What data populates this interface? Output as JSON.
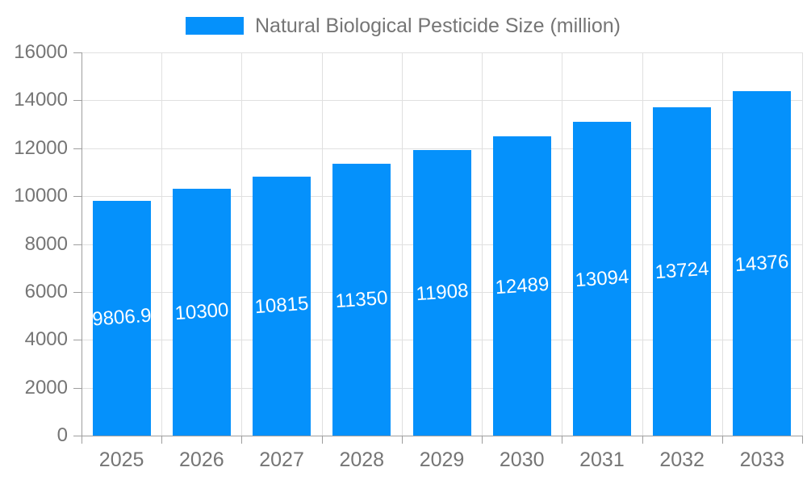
{
  "legend": {
    "label": "Natural Biological Pesticide Size (million)"
  },
  "chart_data": {
    "type": "bar",
    "title": "",
    "legend_entries": [
      "Natural Biological Pesticide Size (million)"
    ],
    "legend_position": "top",
    "categories": [
      "2025",
      "2026",
      "2027",
      "2028",
      "2029",
      "2030",
      "2031",
      "2032",
      "2033"
    ],
    "values": [
      9806.9,
      10300,
      10815,
      11350,
      11908,
      12489,
      13094,
      13724,
      14376
    ],
    "bar_labels": [
      "9806.9",
      "10300",
      "10815",
      "11350",
      "11908",
      "12489",
      "13094",
      "13724",
      "14376"
    ],
    "xlabel": "",
    "ylabel": "",
    "ylim": [
      0,
      16000
    ],
    "yticks": [
      0,
      2000,
      4000,
      6000,
      8000,
      10000,
      12000,
      14000,
      16000
    ],
    "grid": true,
    "colors": {
      "bar": "#0591fb",
      "bar_label_text": "#ffffff",
      "axis_text": "#757575",
      "axis_line": "#9e9e9e",
      "gridline": "#e0e0e0"
    }
  }
}
